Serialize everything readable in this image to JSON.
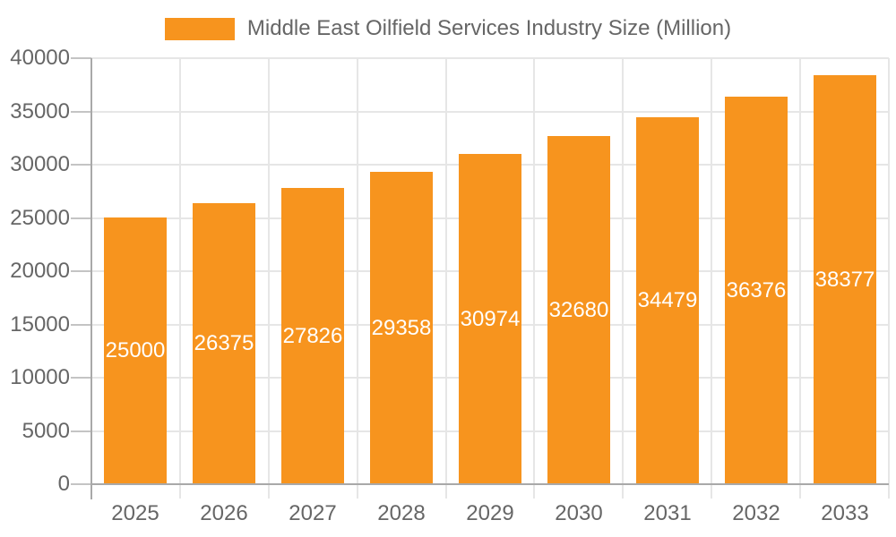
{
  "chart_data": {
    "type": "bar",
    "title": "Middle East Oilfield Services Industry Size (Million)",
    "legend_position": "top",
    "categories": [
      "2025",
      "2026",
      "2027",
      "2028",
      "2029",
      "2030",
      "2031",
      "2032",
      "2033"
    ],
    "values": [
      25000,
      26375,
      27826,
      29358,
      30974,
      32680,
      34479,
      36376,
      38377
    ],
    "value_labels": [
      "25000",
      "26375",
      "27826",
      "29358",
      "30974",
      "32680",
      "34479",
      "36376",
      "38377"
    ],
    "xlabel": "",
    "ylabel": "",
    "ylim": [
      0,
      40000
    ],
    "yticks": [
      0,
      5000,
      10000,
      15000,
      20000,
      25000,
      30000,
      35000,
      40000
    ],
    "ytick_labels": [
      "0",
      "5000",
      "10000",
      "15000",
      "20000",
      "25000",
      "30000",
      "35000",
      "40000"
    ],
    "grid": true,
    "colors": {
      "bar": "#F7941E",
      "bar_value_text": "#FFFFFF",
      "axis_text": "#666666",
      "gridline": "#E6E6E6",
      "axis_line": "#A9A9A9",
      "tick": "#C4C4C4",
      "background": "#FFFFFF"
    }
  }
}
